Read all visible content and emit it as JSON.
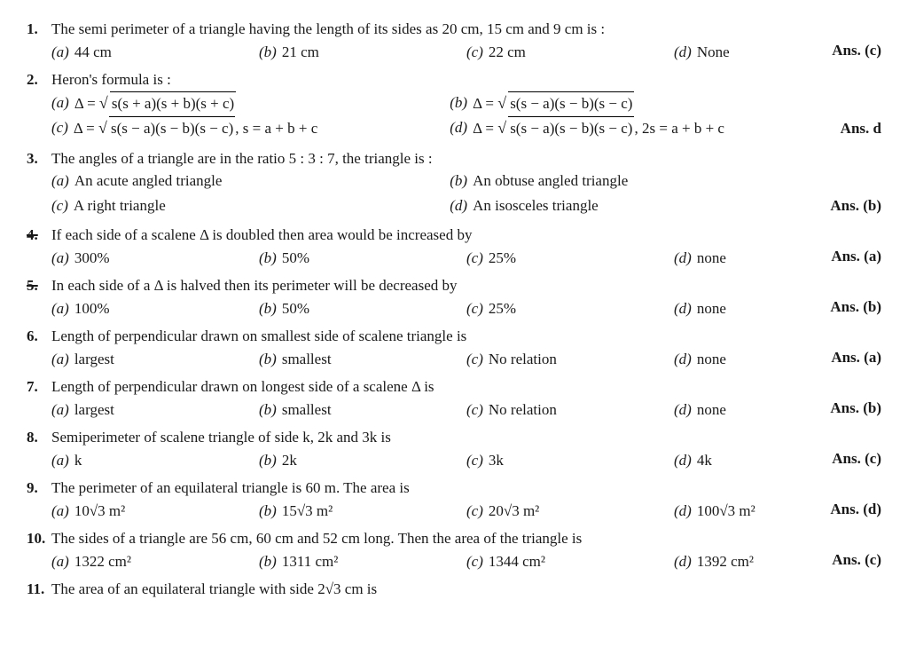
{
  "questions": [
    {
      "num": "1.",
      "text": "The semi perimeter of a triangle having the length of its sides as 20 cm, 15 cm and 9 cm is :",
      "opts": [
        {
          "l": "(a)",
          "t": "44 cm"
        },
        {
          "l": "(b)",
          "t": "21 cm"
        },
        {
          "l": "(c)",
          "t": "22 cm"
        },
        {
          "l": "(d)",
          "t": "None"
        }
      ],
      "ans": "Ans. (c)",
      "layout": "4col"
    },
    {
      "num": "2.",
      "text": "Heron's formula is :",
      "opts": [
        {
          "l": "(a)",
          "formula": "Δ = ",
          "rad": "s(s + a)(s + b)(s + c)"
        },
        {
          "l": "(b)",
          "formula": "Δ = ",
          "rad": "s(s − a)(s − b)(s − c)"
        },
        {
          "l": "(c)",
          "formula": "Δ = ",
          "rad": "s(s − a)(s − b)(s − c)",
          "tail": ", s = a + b + c"
        },
        {
          "l": "(d)",
          "formula": "Δ = ",
          "rad": "s(s − a)(s − b)(s − c)",
          "tail": ", 2s = a + b + c"
        }
      ],
      "ans": "Ans.",
      "ans_extra": "d",
      "layout": "2col"
    },
    {
      "num": "3.",
      "text": "The angles of a triangle are in the ratio 5 : 3 : 7, the triangle is :",
      "opts": [
        {
          "l": "(a)",
          "t": "An acute angled triangle"
        },
        {
          "l": "(b)",
          "t": "An obtuse angled triangle"
        },
        {
          "l": "(c)",
          "t": "A right triangle"
        },
        {
          "l": "(d)",
          "t": "An isosceles triangle"
        }
      ],
      "ans": "Ans. (b)",
      "layout": "2col"
    },
    {
      "num": "4.",
      "num_strike": true,
      "text": "If each side of a scalene Δ is doubled then area would be increased by",
      "opts": [
        {
          "l": "(a)",
          "t": "300%"
        },
        {
          "l": "(b)",
          "t": "50%"
        },
        {
          "l": "(c)",
          "t": "25%"
        },
        {
          "l": "(d)",
          "t": "none"
        }
      ],
      "ans": "Ans. (a)",
      "layout": "4col"
    },
    {
      "num": "5.",
      "num_strike": true,
      "text": "In each side of a Δ is halved then its perimeter will be decreased by",
      "opts": [
        {
          "l": "(a)",
          "t": "100%"
        },
        {
          "l": "(b)",
          "t": "50%"
        },
        {
          "l": "(c)",
          "t": "25%"
        },
        {
          "l": "(d)",
          "t": "none"
        }
      ],
      "ans": "Ans. (b)",
      "layout": "4col"
    },
    {
      "num": "6.",
      "text": "Length of perpendicular drawn on smallest side of scalene triangle is",
      "opts": [
        {
          "l": "(a)",
          "t": "largest"
        },
        {
          "l": "(b)",
          "t": "smallest"
        },
        {
          "l": "(c)",
          "t": "No relation"
        },
        {
          "l": "(d)",
          "t": "none"
        }
      ],
      "ans": "Ans. (a)",
      "layout": "4col"
    },
    {
      "num": "7.",
      "text": "Length of perpendicular drawn on longest side of a scalene Δ is",
      "opts": [
        {
          "l": "(a)",
          "t": "largest"
        },
        {
          "l": "(b)",
          "t": "smallest"
        },
        {
          "l": "(c)",
          "t": "No relation"
        },
        {
          "l": "(d)",
          "t": "none"
        }
      ],
      "ans": "Ans. (b)",
      "layout": "4col"
    },
    {
      "num": "8.",
      "text": "Semiperimeter of scalene triangle of side k, 2k and 3k is",
      "opts": [
        {
          "l": "(a)",
          "t": "k"
        },
        {
          "l": "(b)",
          "t": "2k"
        },
        {
          "l": "(c)",
          "t": "3k"
        },
        {
          "l": "(d)",
          "t": "4k"
        }
      ],
      "ans": "Ans. (c)",
      "layout": "4col"
    },
    {
      "num": "9.",
      "text": "The perimeter of an equilateral triangle is 60 m. The area is",
      "opts": [
        {
          "l": "(a)",
          "t": "10√3 m²"
        },
        {
          "l": "(b)",
          "t": "15√3 m²"
        },
        {
          "l": "(c)",
          "t": "20√3 m²"
        },
        {
          "l": "(d)",
          "t": "100√3 m²"
        }
      ],
      "ans": "Ans. (d)",
      "layout": "4col"
    },
    {
      "num": "10.",
      "text": "The sides of a triangle are 56 cm, 60 cm and 52 cm long. Then the area of the triangle is",
      "opts": [
        {
          "l": "(a)",
          "t": "1322 cm²"
        },
        {
          "l": "(b)",
          "t": "1311 cm²"
        },
        {
          "l": "(c)",
          "t": "1344 cm²"
        },
        {
          "l": "(d)",
          "t": "1392 cm²"
        }
      ],
      "ans": "Ans. (c)",
      "layout": "4col"
    },
    {
      "num": "11.",
      "text": "The area of an equilateral triangle with side 2√3 cm is",
      "opts": [],
      "layout": "4col"
    }
  ]
}
